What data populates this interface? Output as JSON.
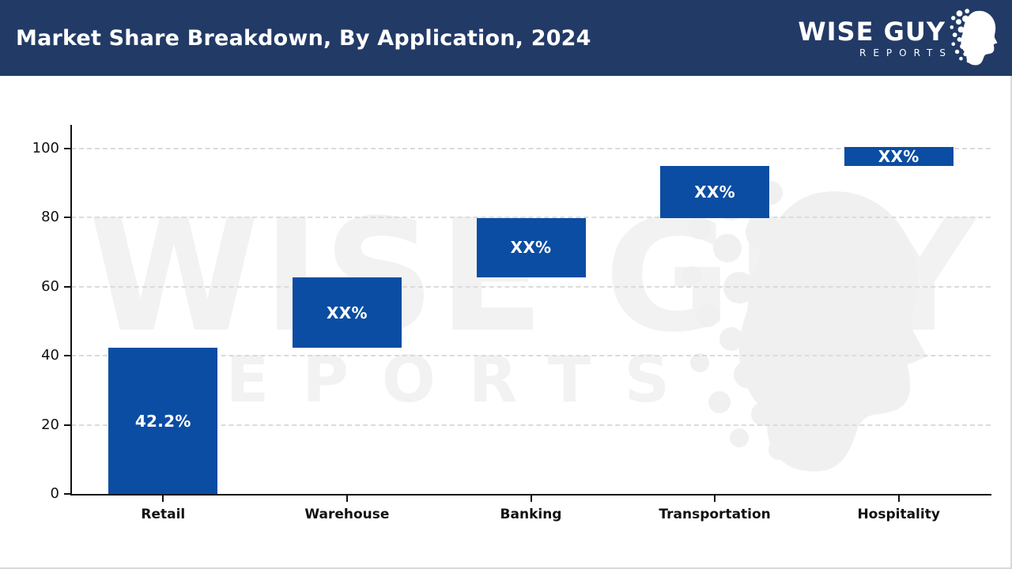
{
  "header": {
    "title": "Market Share Breakdown, By Application, 2024",
    "logo": {
      "line1": "WISE GUY",
      "line2": "REPORTS"
    }
  },
  "watermark": {
    "line1": "WISE GUY",
    "line2": "REPORTS"
  },
  "colors": {
    "header_bg": "#223A66",
    "bar": "#0B4DA2",
    "grid": "#DBDBDB",
    "axis": "#111111",
    "bar_label_text": "#FFFFFF",
    "watermark": "#F2F2F2"
  },
  "chart_data": {
    "type": "bar",
    "subtype": "waterfall",
    "title": "Market Share Breakdown, By Application, 2024",
    "xlabel": "",
    "ylabel": "",
    "ylim": [
      0,
      105
    ],
    "yticks": [
      0,
      20,
      40,
      60,
      80,
      100
    ],
    "grid": "horizontal dashed",
    "legend": "none",
    "categories": [
      "Retail",
      "Warehouse",
      "Banking",
      "Transportation",
      "Hospitality"
    ],
    "segments": [
      {
        "category": "Retail",
        "start": 0,
        "end": 42.2,
        "label": "42.2%"
      },
      {
        "category": "Warehouse",
        "start": 42.2,
        "end": 62.7,
        "label": "XX%"
      },
      {
        "category": "Banking",
        "start": 62.7,
        "end": 79.8,
        "label": "XX%"
      },
      {
        "category": "Transportation",
        "start": 79.8,
        "end": 94.8,
        "label": "XX%"
      },
      {
        "category": "Hospitality",
        "start": 94.8,
        "end": 100.3,
        "label": "XX%"
      }
    ]
  }
}
